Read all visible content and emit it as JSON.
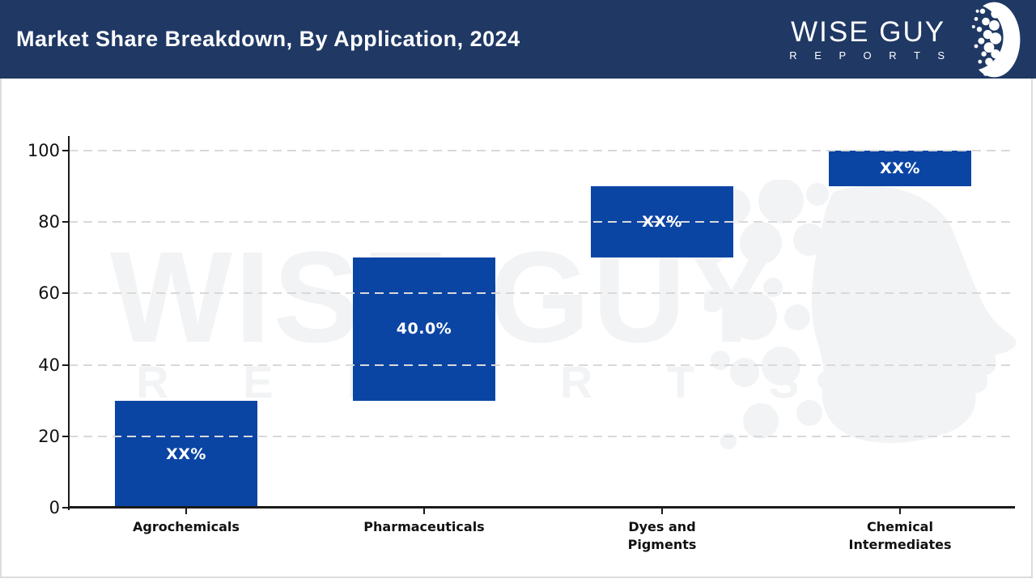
{
  "header": {
    "title": "Market Share Breakdown, By Application, 2024",
    "logo": {
      "wordmark": "WISE GUY",
      "subtitle": "R E P O R T S"
    }
  },
  "watermark": {
    "wordmark": "WISE GUY",
    "subtitle": "R E P O R T S"
  },
  "chart_data": {
    "type": "bar",
    "subtype": "floating-segment-waterfall",
    "title": "Market Share Breakdown, By Application, 2024",
    "categories": [
      "Agrochemicals",
      "Pharmaceuticals",
      "Dyes and Pigments",
      "Chemical Intermediates"
    ],
    "segments": [
      {
        "category": "Agrochemicals",
        "start": 0,
        "end": 30,
        "label": "XX%"
      },
      {
        "category": "Pharmaceuticals",
        "start": 30,
        "end": 70,
        "label": "40.0%"
      },
      {
        "category": "Dyes and Pigments",
        "start": 70,
        "end": 90,
        "label": "XX%"
      },
      {
        "category": "Chemical Intermediates",
        "start": 90,
        "end": 100,
        "label": "XX%"
      }
    ],
    "yticks": [
      0,
      20,
      40,
      60,
      80,
      100
    ],
    "ylim": [
      0,
      105
    ],
    "xlabel": "",
    "ylabel": "",
    "grid": "horizontal-dashed",
    "legend": "none",
    "colors": {
      "bar": "#0b45a4",
      "grid": "#d9d9d9",
      "axis": "#1a1a1a",
      "value_label": "#ffffff",
      "header_bg": "#1f3864",
      "watermark": "#f2f3f5"
    }
  }
}
